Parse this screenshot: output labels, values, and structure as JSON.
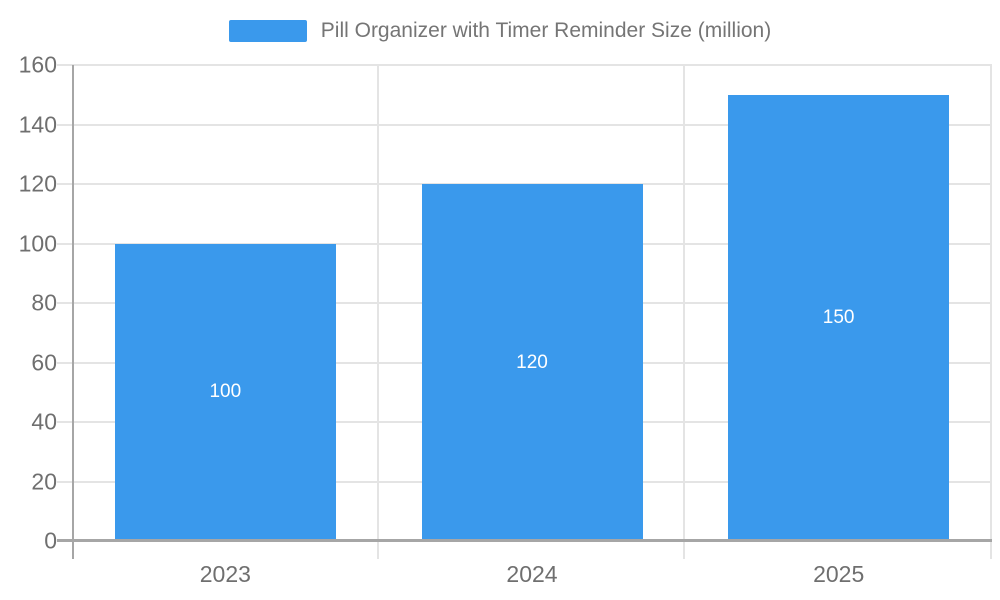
{
  "legend": {
    "label": "Pill Organizer with Timer Reminder Size (million)"
  },
  "chart_data": {
    "type": "bar",
    "title": "Pill Organizer with Timer Reminder Size (million)",
    "series_name": "Pill Organizer with Timer Reminder Size (million)",
    "categories": [
      "2023",
      "2024",
      "2025"
    ],
    "values": [
      100,
      120,
      150
    ],
    "data_labels": [
      "100",
      "120",
      "150"
    ],
    "xlabel": "",
    "ylabel": "",
    "ylim": [
      0,
      160
    ],
    "ytick_step": 20,
    "ytick_labels": [
      "0",
      "20",
      "40",
      "60",
      "80",
      "100",
      "120",
      "140",
      "160"
    ],
    "grid": true,
    "legend_position": "top-center",
    "bar_color": "#3A99EC",
    "bar_label_color": "#ffffff",
    "axis_text_color": "#6f6f6f",
    "legend_text_color": "#757575",
    "gridline_color": "#e4e4e4",
    "axis_line_color": "#a6a6a6"
  }
}
